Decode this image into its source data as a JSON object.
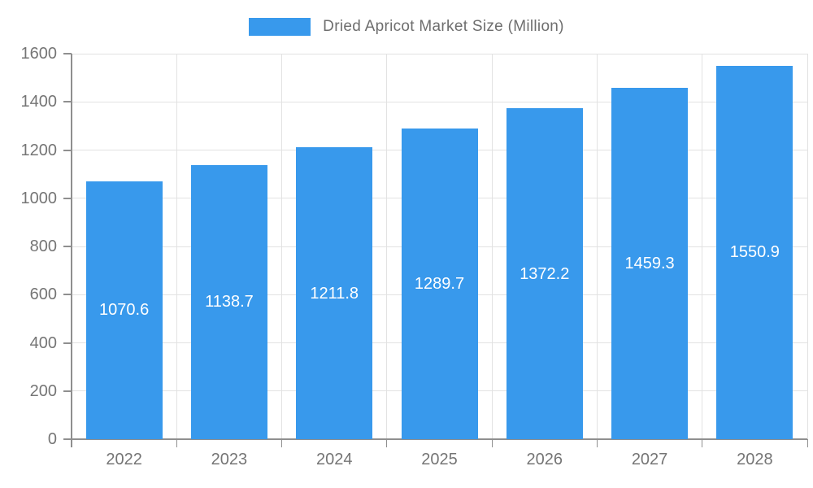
{
  "legend": {
    "label": "Dried Apricot Market Size (Million)"
  },
  "colors": {
    "bar": "#3899ec",
    "grid": "#e2e2e2",
    "axis": "#8f8f8f",
    "tick_label": "#757575",
    "value_label": "#ffffff",
    "legend_text": "#6e6e6e",
    "background": "#ffffff"
  },
  "chart_data": {
    "type": "bar",
    "title": "Dried Apricot Market Size (Million)",
    "categories": [
      "2022",
      "2023",
      "2024",
      "2025",
      "2026",
      "2027",
      "2028"
    ],
    "series": [
      {
        "name": "Dried Apricot Market Size (Million)",
        "values": [
          1070.6,
          1138.7,
          1211.8,
          1289.7,
          1372.2,
          1459.3,
          1550.9
        ]
      }
    ],
    "value_labels": [
      "1070.6",
      "1138.7",
      "1211.8",
      "1289.7",
      "1372.2",
      "1459.3",
      "1550.9"
    ],
    "xlabel": "",
    "ylabel": "",
    "ylim": [
      0,
      1600
    ],
    "yticks": [
      0,
      200,
      400,
      600,
      800,
      1000,
      1200,
      1400,
      1600
    ],
    "grid": true,
    "legend_position": "top-center",
    "value_label_position": "inside-center"
  }
}
